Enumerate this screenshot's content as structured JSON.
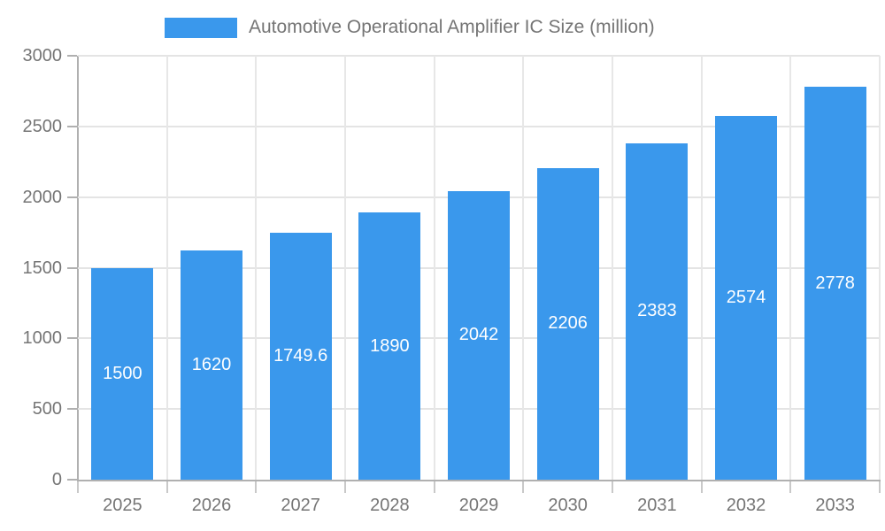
{
  "legend": {
    "label": "Automotive Operational Amplifier IC Size (million)"
  },
  "chart_data": {
    "type": "bar",
    "title": "Automotive Operational Amplifier IC Size (million)",
    "categories": [
      "2025",
      "2026",
      "2027",
      "2028",
      "2029",
      "2030",
      "2031",
      "2032",
      "2033"
    ],
    "values": [
      1500,
      1620,
      1749.6,
      1890,
      2042,
      2206,
      2383,
      2574,
      2778
    ],
    "value_labels": [
      "1500",
      "1620",
      "1749.6",
      "1890",
      "2042",
      "2206",
      "2383",
      "2574",
      "2778"
    ],
    "xlabel": "",
    "ylabel": "",
    "ylim": [
      0,
      3000
    ],
    "ytick_interval": 500,
    "yticks": [
      "0",
      "500",
      "1000",
      "1500",
      "2000",
      "2500",
      "3000"
    ],
    "grid": true,
    "legend_position": "top-center",
    "bar_color": "#3A98EC",
    "value_label_color": "#ffffff",
    "axis_text_color": "#757575",
    "axis_line_color": "#b0b0b0",
    "h_grid_color": "#e4e4e4",
    "v_grid_color": "#e7e7e7",
    "tick_color": "#c9c9c9",
    "background_color": "#ffffff"
  }
}
